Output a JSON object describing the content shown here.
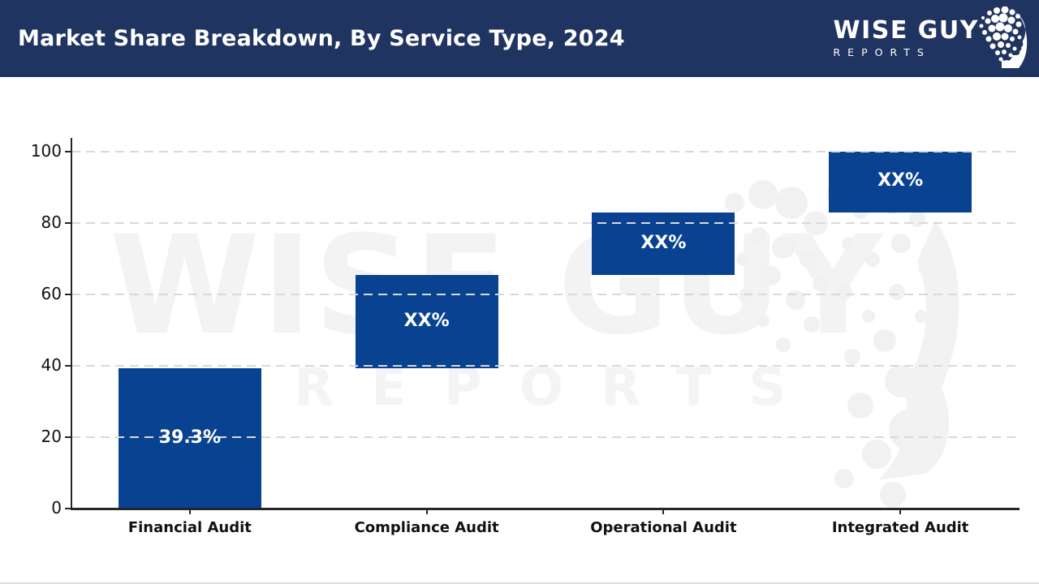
{
  "header": {
    "title": "Market Share Breakdown, By Service Type, 2024",
    "bg_color": "#203461",
    "brand": {
      "name": "WISE GUY",
      "sub": "REPORTS"
    }
  },
  "watermark": {
    "line1": "WISE GUY",
    "line2": "REPORTS"
  },
  "chart_data": {
    "type": "bar",
    "variant": "stacked-waterfall",
    "title": "Market Share Breakdown, By Service Type, 2024",
    "categories": [
      "Financial Audit",
      "Compliance Audit",
      "Operational Audit",
      "Integrated Audit"
    ],
    "series": [
      {
        "name": "Market share (%)",
        "segments": [
          {
            "category": "Financial Audit",
            "start": 0,
            "end": 39.3,
            "label": "39.3%"
          },
          {
            "category": "Compliance Audit",
            "start": 39.3,
            "end": 65.4,
            "label": "XX%"
          },
          {
            "category": "Operational Audit",
            "start": 65.4,
            "end": 83.0,
            "label": "XX%"
          },
          {
            "category": "Integrated Audit",
            "start": 83.0,
            "end": 100.0,
            "label": "XX%"
          }
        ]
      }
    ],
    "ylim": [
      0,
      100
    ],
    "yticks": [
      0,
      20,
      40,
      60,
      80,
      100
    ],
    "grid": "horizontal-dashed",
    "legend": "none",
    "bar_color": "#084291",
    "value_label_color": "#ffffff",
    "axis_color": "#262626",
    "gridline_color": "#d9d9d9"
  }
}
